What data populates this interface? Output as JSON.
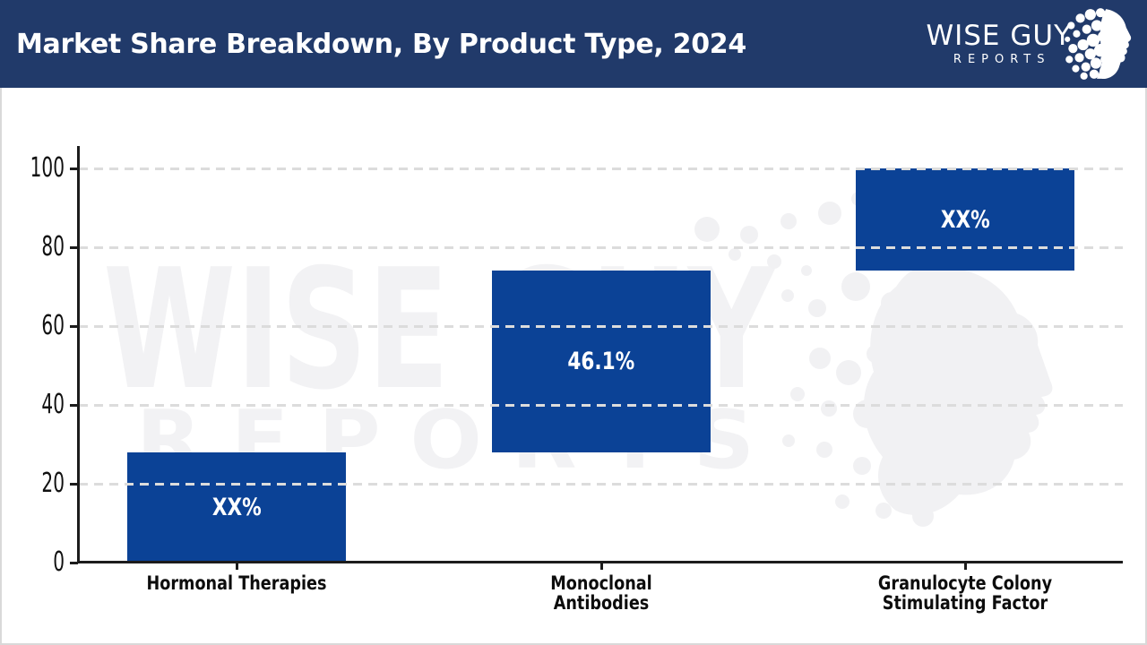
{
  "header": {
    "title": "Market Share Breakdown, By Product Type, 2024",
    "logo": {
      "line1": "WISE GUY",
      "line2": "REPORTS"
    }
  },
  "watermark": {
    "line1": "WISE GUY",
    "line2": "R E P O R T S"
  },
  "chart_data": {
    "type": "bar",
    "subtype": "floating-segmented-column",
    "title": "Market Share Breakdown, By Product Type, 2024",
    "categories": [
      "Hormonal Therapies",
      "Monoclonal\nAntibodies",
      "Granulocyte Colony\nStimulating Factor"
    ],
    "segments": [
      {
        "category": "Hormonal Therapies",
        "start": 0,
        "end": 27.9,
        "value": 27.9,
        "label": "XX%"
      },
      {
        "category": "Monoclonal Antibodies",
        "start": 27.9,
        "end": 74.0,
        "value": 46.1,
        "label": "46.1%"
      },
      {
        "category": "Granulocyte Colony Stimulating Factor",
        "start": 74.0,
        "end": 100.0,
        "value": 26.0,
        "label": "XX%"
      }
    ],
    "yticks": [
      0,
      20,
      40,
      60,
      80,
      100
    ],
    "ylim": [
      0,
      100
    ],
    "unit": "%",
    "grid": "horizontal-dashed",
    "grid_color": "#dcdcdc",
    "bar_color": "#0b4296",
    "axis_color": "#1c1c1c",
    "header_color": "#213a6a",
    "legend": null,
    "xlabel": "",
    "ylabel": ""
  }
}
